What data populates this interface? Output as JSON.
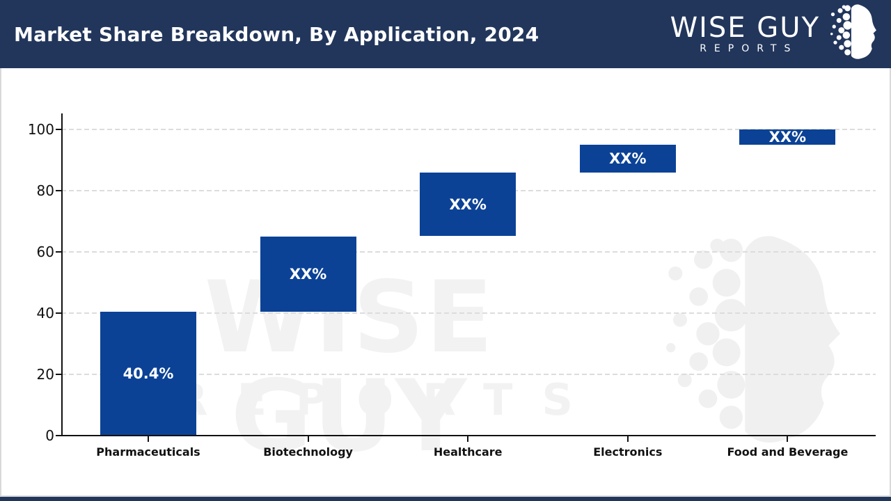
{
  "header": {
    "title": "Market Share Breakdown, By Application, 2024",
    "logo_line1": "WISE GUY",
    "logo_line2": "REPORTS"
  },
  "watermark": {
    "line1": "WISE GUY",
    "line2": "REPORTS"
  },
  "colors": {
    "header_bg": "#22365c",
    "footer_bg": "#22365c",
    "bar": "#0b4296",
    "bar_label": "#ffffff",
    "grid": "#dcdcdc",
    "axis": "#111111",
    "watermark": "#f2f2f2",
    "watermark_head": "#f0f0f0",
    "title_text": "#ffffff"
  },
  "chart_data": {
    "type": "bar",
    "subtype": "waterfall-floating-segments",
    "title": "Market Share Breakdown, By Application, 2024",
    "xlabel": "",
    "ylabel": "",
    "categories": [
      "Pharmaceuticals",
      "Biotechnology",
      "Healthcare",
      "Electronics",
      "Food and Beverage"
    ],
    "segments": [
      {
        "category": "Pharmaceuticals",
        "start": 0,
        "end": 40.4,
        "label": "40.4%"
      },
      {
        "category": "Biotechnology",
        "start": 40.4,
        "end": 65,
        "label": "XX%"
      },
      {
        "category": "Healthcare",
        "start": 65,
        "end": 85.7,
        "label": "XX%"
      },
      {
        "category": "Electronics",
        "start": 85.7,
        "end": 95,
        "label": "XX%"
      },
      {
        "category": "Food and Beverage",
        "start": 95,
        "end": 100,
        "label": "XX%"
      }
    ],
    "yticks": [
      0,
      20,
      40,
      60,
      80,
      100
    ],
    "ylim": [
      0,
      105
    ],
    "grid": "horizontal-dashed",
    "legend": "none"
  }
}
